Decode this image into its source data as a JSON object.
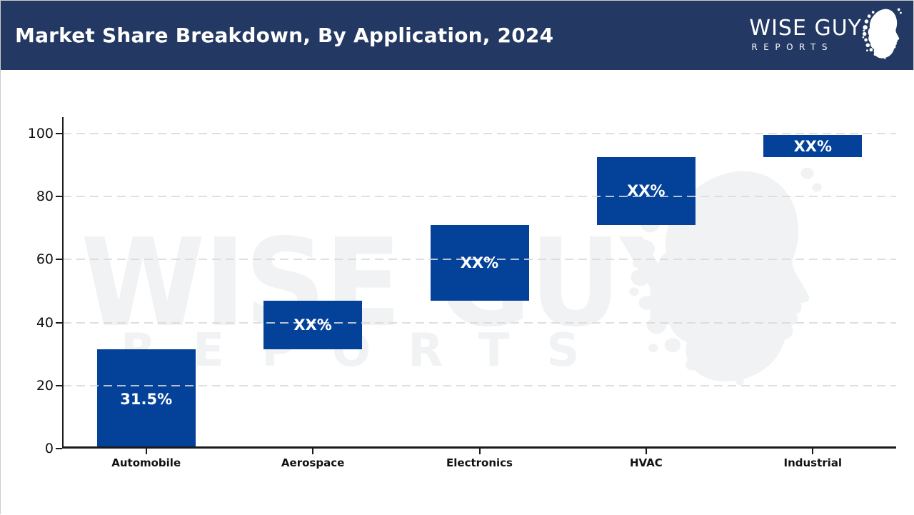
{
  "header": {
    "title": "Market Share Breakdown, By Application, 2024",
    "logo": {
      "line1": "WISE GUY",
      "line2": "REPORTS"
    }
  },
  "watermark": {
    "line1": "WISE GUY",
    "line2": "REPORTS"
  },
  "colors": {
    "header_bg": "#233862",
    "bar": "#044199",
    "bar_label": "#ffffff",
    "axis": "#1a1a1a",
    "grid": "#d9d9d9",
    "text": "#111111",
    "watermark": "#f1f2f4",
    "title": "#ffffff"
  },
  "chart_data": {
    "type": "bar",
    "subtype": "waterfall",
    "title": "Market Share Breakdown, By Application, 2024",
    "categories": [
      "Automobile",
      "Aerospace",
      "Electronics",
      "HVAC",
      "Industrial"
    ],
    "segments": [
      {
        "category": "Automobile",
        "start": 0,
        "end": 31.5,
        "label": "31.5%"
      },
      {
        "category": "Aerospace",
        "start": 31.5,
        "end": 47,
        "label": "XX%"
      },
      {
        "category": "Electronics",
        "start": 47,
        "end": 71,
        "label": "XX%"
      },
      {
        "category": "HVAC",
        "start": 71,
        "end": 92.5,
        "label": "XX%"
      },
      {
        "category": "Industrial",
        "start": 92.5,
        "end": 99.5,
        "label": "XX%"
      }
    ],
    "xlabel": "",
    "ylabel": "",
    "ylim": [
      0,
      105
    ],
    "yticks": [
      0,
      20,
      40,
      60,
      80,
      100
    ],
    "grid": {
      "axis": "y",
      "style": "dashed"
    },
    "legend": "none"
  }
}
